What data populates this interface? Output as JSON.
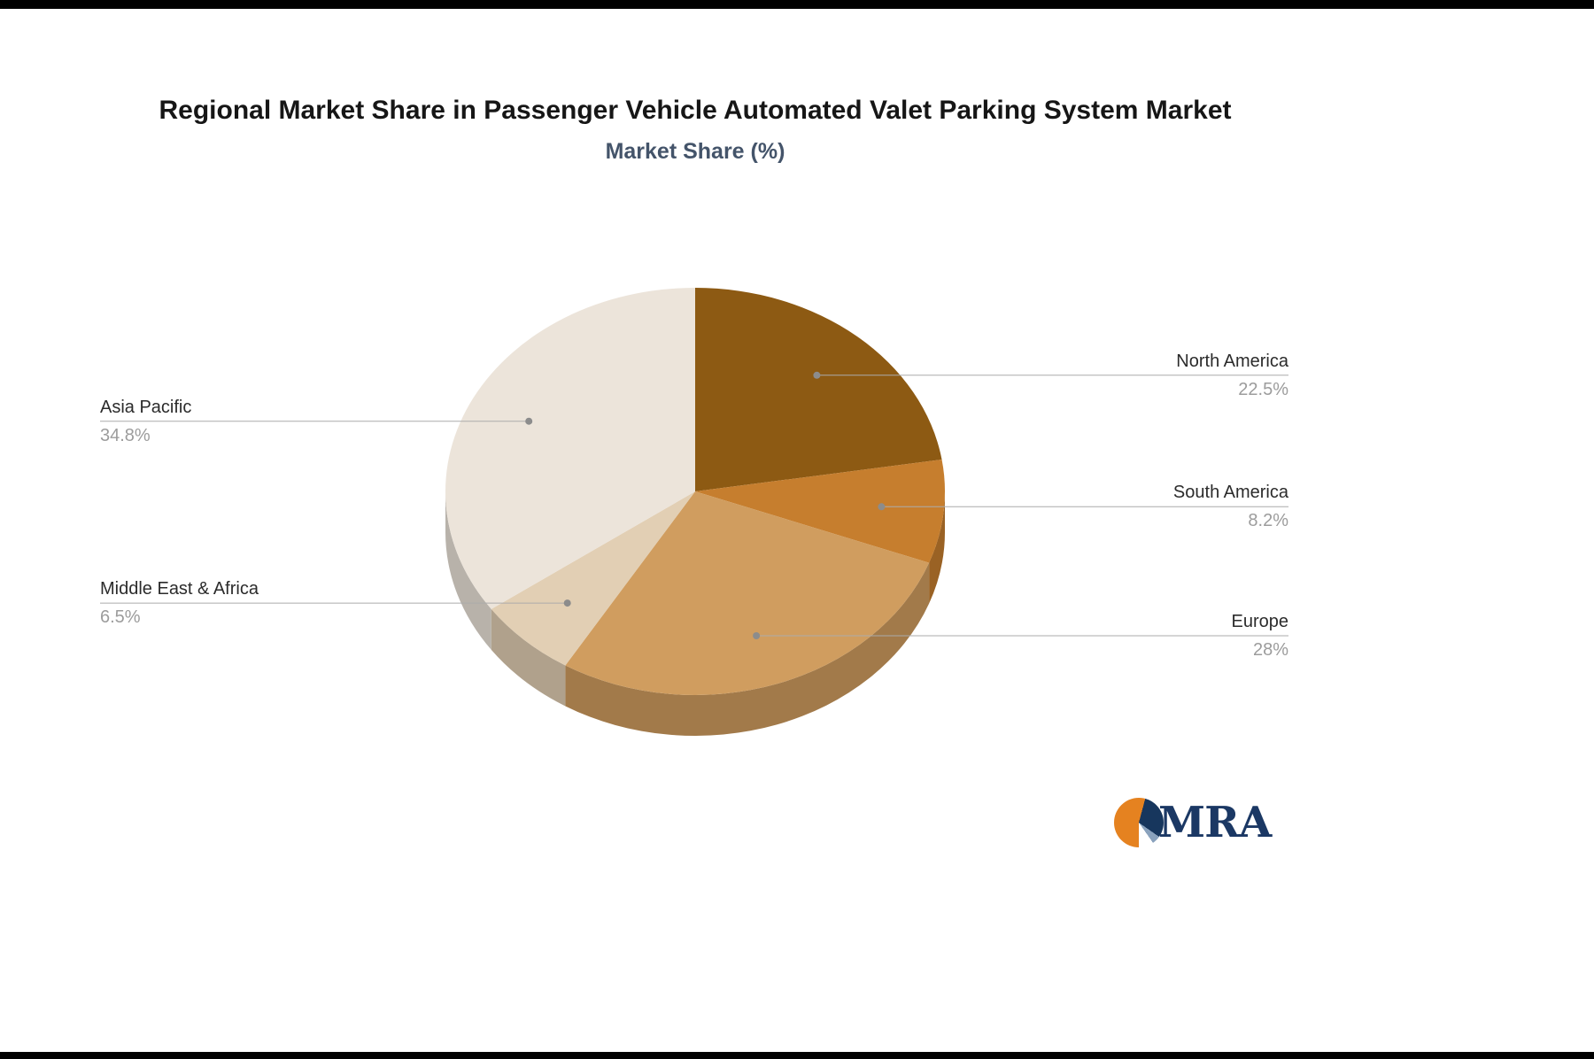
{
  "header": {
    "title": "Regional Market Share in Passenger Vehicle Automated Valet Parking System Market",
    "subtitle": "Market Share (%)"
  },
  "chart_data": {
    "type": "pie",
    "title": "Regional Market Share in Passenger Vehicle Automated Valet Parking System Market",
    "subtitle": "Market Share (%)",
    "unit": "percent",
    "effect": "3d",
    "start_angle_deg": -90,
    "direction": "clockwise",
    "legend_position": "callout-labels",
    "label_color": "#2b2b2b",
    "value_color": "#9c9c9c",
    "leader_line_color": "#ababab",
    "leader_dot_color": "#8c8c8c",
    "slices": [
      {
        "label": "North America",
        "value": 22.5,
        "display": "22.5%",
        "color": "#8D5A13",
        "label_side": "right"
      },
      {
        "label": "South America",
        "value": 8.2,
        "display": "8.2%",
        "color": "#C67E2E",
        "label_side": "right"
      },
      {
        "label": "Europe",
        "value": 28,
        "display": "28%",
        "color": "#D09D5F",
        "label_side": "right"
      },
      {
        "label": "Middle East & Africa",
        "value": 6.5,
        "display": "6.5%",
        "color": "#E2CFB4",
        "label_side": "left"
      },
      {
        "label": "Asia Pacific",
        "value": 34.8,
        "display": "34.8%",
        "color": "#ECE4DA",
        "label_side": "left"
      }
    ]
  },
  "logo": {
    "text": "MRA",
    "orange": "#E58220",
    "navy": "#17365D",
    "steel": "#8AA2BD",
    "text_color": "#1B3864"
  }
}
